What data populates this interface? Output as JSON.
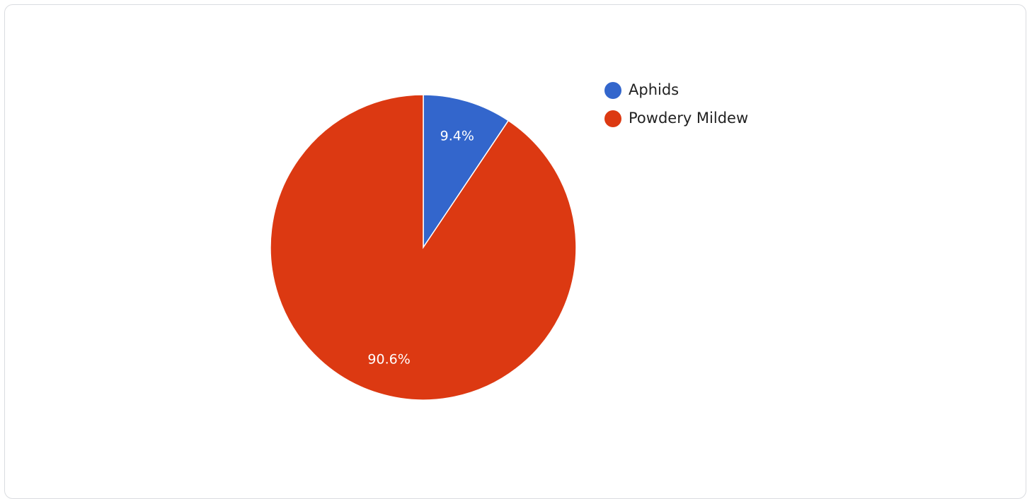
{
  "chart_data": {
    "type": "pie",
    "categories": [
      "Aphids",
      "Powdery Mildew"
    ],
    "values": [
      9.4,
      90.6
    ],
    "value_labels": [
      "9.4%",
      "90.6%"
    ],
    "colors": [
      "#3366cc",
      "#dc3912"
    ],
    "legend_position": "right",
    "start_angle": "top",
    "direction": "clockwise"
  }
}
